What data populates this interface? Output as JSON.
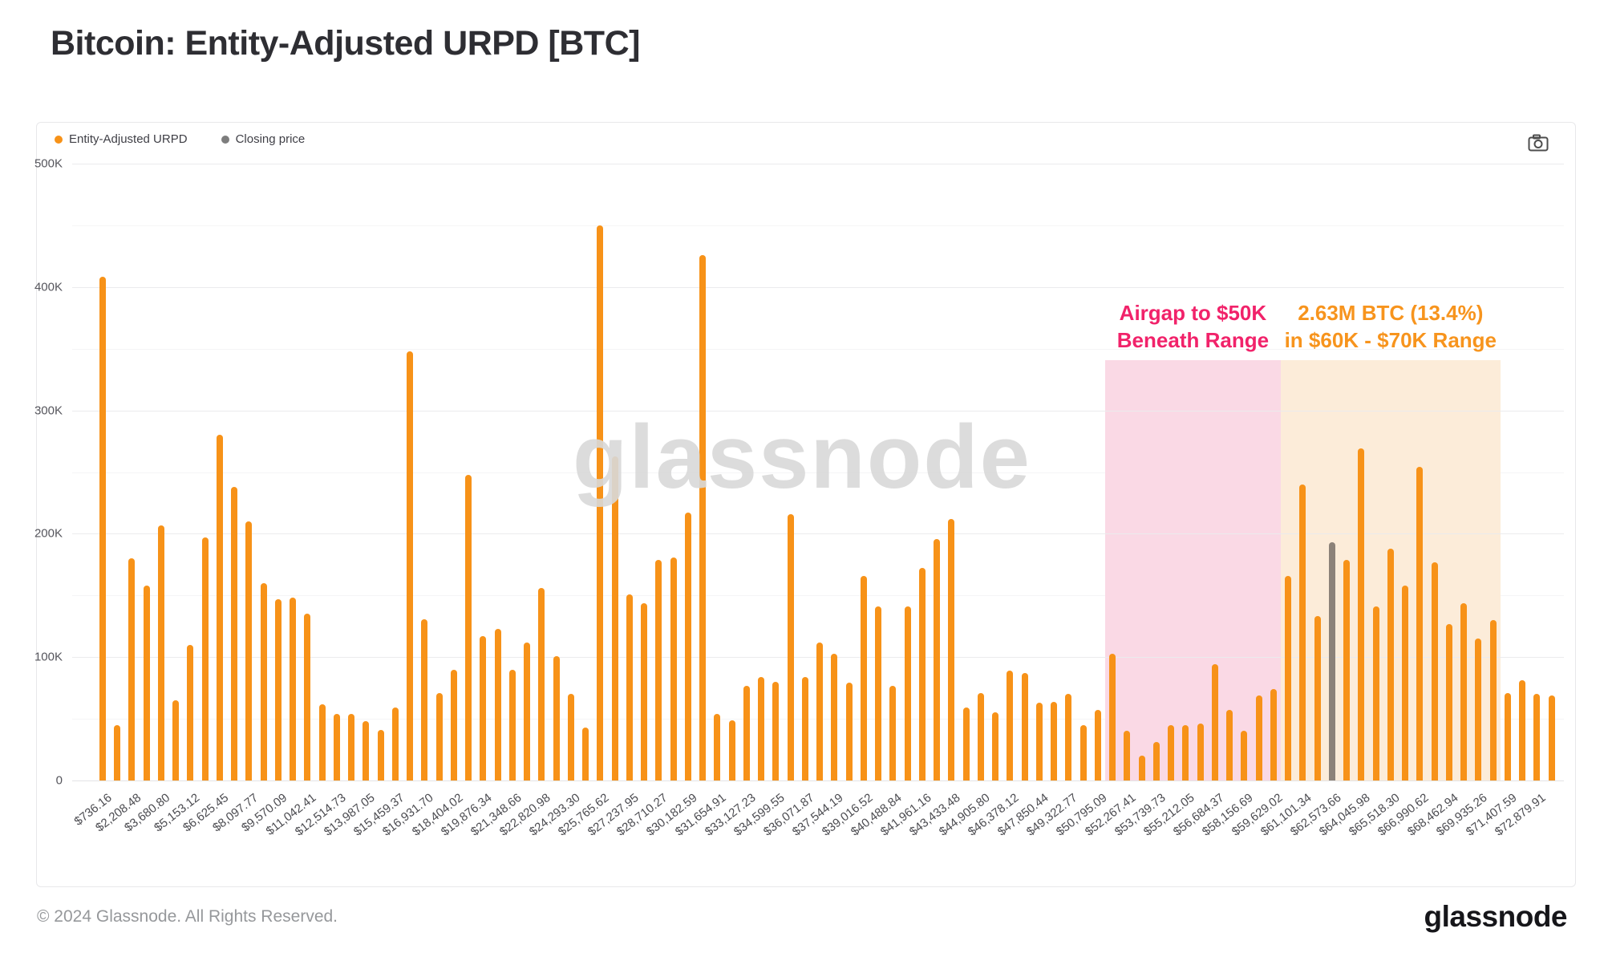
{
  "header": {
    "title": "Bitcoin: Entity-Adjusted URPD [BTC]"
  },
  "legend": [
    {
      "label": "Entity-Adjusted URPD",
      "color": "#f79218"
    },
    {
      "label": "Closing price",
      "color": "#7d7d7d"
    }
  ],
  "toolbar": {
    "camera_icon": "camera-icon"
  },
  "watermark": "glassnode",
  "footer": {
    "copyright": "© 2024 Glassnode. All Rights Reserved.",
    "brand": "glassnode"
  },
  "chart_data": {
    "type": "bar",
    "title": "Bitcoin: Entity-Adjusted URPD [BTC]",
    "xlabel": "",
    "ylabel": "",
    "value_unit": "thousand BTC",
    "ylim": [
      0,
      500
    ],
    "grid": "horizontal",
    "y_tick_labels": [
      "500K",
      "400K",
      "300K",
      "200K",
      "100K",
      "0"
    ],
    "y_tick_values": [
      500,
      400,
      300,
      200,
      100,
      0
    ],
    "y_minor_tick_values": [
      450,
      350,
      250,
      150,
      50
    ],
    "x_tick_labels": [
      "$736.16",
      "$2,208.48",
      "$3,680.80",
      "$5,153.12",
      "$6,625.45",
      "$8,097.77",
      "$9,570.09",
      "$11,042.41",
      "$12,514.73",
      "$13,987.05",
      "$15,459.37",
      "$16,931.70",
      "$18,404.02",
      "$19,876.34",
      "$21,348.66",
      "$22,820.98",
      "$24,293.30",
      "$25,765.62",
      "$27,237.95",
      "$28,710.27",
      "$30,182.59",
      "$31,654.91",
      "$33,127.23",
      "$34,599.55",
      "$36,071.87",
      "$37,544.19",
      "$39,016.52",
      "$40,488.84",
      "$41,961.16",
      "$43,433.48",
      "$44,905.80",
      "$46,378.12",
      "$47,850.44",
      "$49,322.77",
      "$50,795.09",
      "$52,267.41",
      "$53,739.73",
      "$55,212.05",
      "$56,684.37",
      "$58,156.69",
      "$59,629.02",
      "$61,101.34",
      "$62,573.66",
      "$64,045.98",
      "$65,518.30",
      "$66,990.62",
      "$68,462.94",
      "$69,935.26",
      "$71,407.59",
      "$72,879.91"
    ],
    "series_name": "Entity-Adjusted URPD",
    "values_k": [
      408,
      45,
      180,
      158,
      207,
      65,
      110,
      197,
      280,
      238,
      210,
      160,
      147,
      148,
      135,
      62,
      54,
      54,
      48,
      41,
      59,
      348,
      131,
      71,
      90,
      248,
      117,
      123,
      90,
      112,
      156,
      101,
      70,
      43,
      450,
      263,
      151,
      144,
      179,
      181,
      217,
      426,
      54,
      49,
      77,
      84,
      80,
      216,
      84,
      112,
      103,
      79,
      166,
      141,
      77,
      141,
      172,
      196,
      212,
      59,
      71,
      55,
      89,
      87,
      63,
      64,
      70,
      45,
      57,
      103,
      40,
      20,
      31,
      45,
      45,
      46,
      94,
      57,
      40,
      69,
      74,
      166,
      240,
      133,
      193,
      179,
      269,
      141,
      188,
      158,
      254,
      177,
      127,
      144,
      115,
      130,
      71,
      81,
      70,
      69
    ],
    "closing_price_bar": 85,
    "closing_price_value_k": 193,
    "closing_price_color": "#8c8279",
    "bar_color": "#f79218",
    "regions": [
      {
        "name": "airgap",
        "label_lines": [
          "Airgap to $50K",
          "Beneath Range"
        ],
        "start_bar": 70,
        "end_bar": 81,
        "fill": "#fad9e5",
        "text_color": "#f1226a"
      },
      {
        "name": "range-60k-70k",
        "label_lines": [
          "2.63M BTC (13.4%)",
          "in $60K - $70K Range"
        ],
        "start_bar": 82,
        "end_bar": 96,
        "fill": "#fcecd9",
        "text_color": "#f7941d"
      }
    ],
    "legend_position": "top-left"
  }
}
